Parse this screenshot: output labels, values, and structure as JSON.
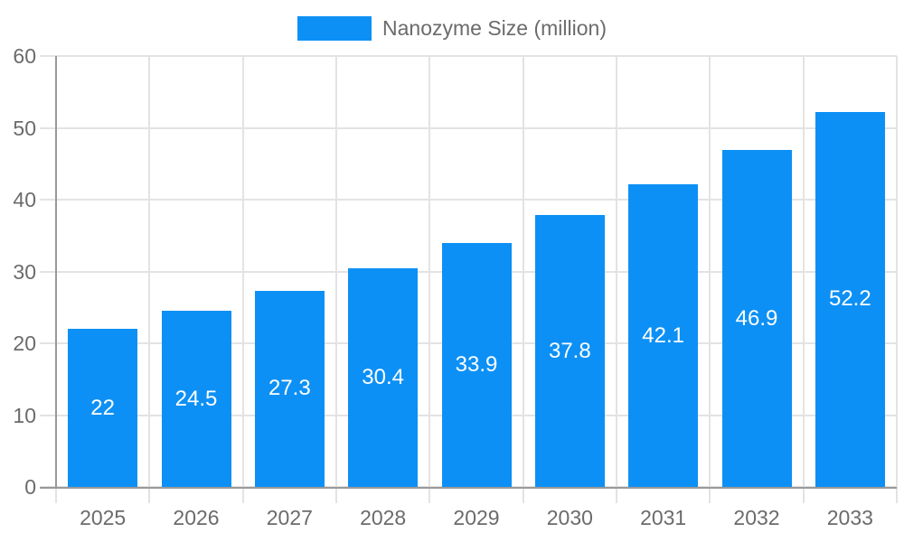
{
  "legend": {
    "label": "Nanozyme Size (million)"
  },
  "colors": {
    "bar": "#0d90f5",
    "grid": "#e3e3e3",
    "axis": "#999999",
    "tick_text": "#6b6b6b",
    "bar_label": "#ffffff",
    "background": "#ffffff"
  },
  "chart_data": {
    "type": "bar",
    "title": "",
    "series_name": "Nanozyme Size (million)",
    "categories": [
      "2025",
      "2026",
      "2027",
      "2028",
      "2029",
      "2030",
      "2031",
      "2032",
      "2033"
    ],
    "values": [
      22,
      24.5,
      27.3,
      30.4,
      33.9,
      37.8,
      42.1,
      46.9,
      52.2
    ],
    "value_labels": [
      "22",
      "24.5",
      "27.3",
      "30.4",
      "33.9",
      "37.8",
      "42.1",
      "46.9",
      "52.2"
    ],
    "value_label_position": "center-inside",
    "xlabel": "",
    "ylabel": "",
    "ylim": [
      0,
      60
    ],
    "yticks": [
      0,
      10,
      20,
      30,
      40,
      50,
      60
    ],
    "grid": true,
    "legend_position": "top-center"
  }
}
